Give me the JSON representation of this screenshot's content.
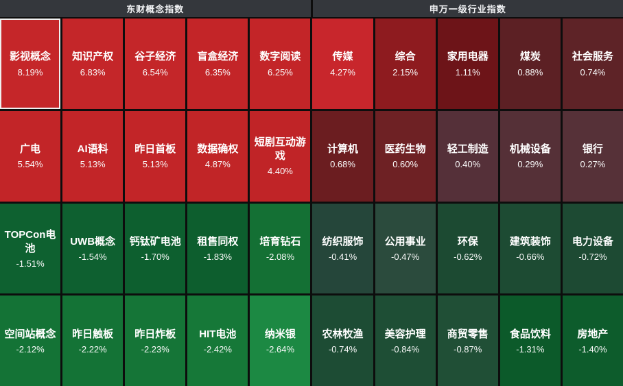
{
  "header": {
    "left_title": "东财概念指数",
    "right_title": "申万一级行业指数"
  },
  "colors": {
    "background": "#0d0d0d",
    "header_bar": "#34373c",
    "header_text": "#f2f3f5",
    "cell_text": "#ffffff",
    "selected_border": "#f0f0f0"
  },
  "chart_data": {
    "type": "heatmap",
    "title": "东财概念指数 / 申万一级行业指数 涨跌幅热力图",
    "value_unit": "%",
    "layout": {
      "rows": 4,
      "columns_per_group": 5,
      "groups_side_by_side": true,
      "order": "row-major"
    },
    "color_scale": {
      "strong_gain": "#c5262a",
      "weak_gain": "#5e2327",
      "weak_loss": "#25463a",
      "strong_loss": "#1c8943"
    },
    "groups": [
      {
        "title": "东财概念指数",
        "cells": [
          {
            "name": "影视概念",
            "value": 8.19,
            "change": "8.19%",
            "color": "#c52629",
            "selected": true
          },
          {
            "name": "知识产权",
            "value": 6.83,
            "change": "6.83%",
            "color": "#c42629",
            "selected": false
          },
          {
            "name": "谷子经济",
            "value": 6.54,
            "change": "6.54%",
            "color": "#c42629",
            "selected": false
          },
          {
            "name": "盲盒经济",
            "value": 6.35,
            "change": "6.35%",
            "color": "#c32528",
            "selected": false
          },
          {
            "name": "数字阅读",
            "value": 6.25,
            "change": "6.25%",
            "color": "#c32528",
            "selected": false
          },
          {
            "name": "广电",
            "value": 5.54,
            "change": "5.54%",
            "color": "#c22528",
            "selected": false
          },
          {
            "name": "AI语料",
            "value": 5.13,
            "change": "5.13%",
            "color": "#c22528",
            "selected": false
          },
          {
            "name": "昨日首板",
            "value": 5.13,
            "change": "5.13%",
            "color": "#c22528",
            "selected": false
          },
          {
            "name": "数据确权",
            "value": 4.87,
            "change": "4.87%",
            "color": "#c12527",
            "selected": false
          },
          {
            "name": "短剧互动游戏",
            "value": 4.4,
            "change": "4.40%",
            "color": "#c02427",
            "selected": false
          },
          {
            "name": "TOPCon电池",
            "value": -1.51,
            "change": "-1.51%",
            "color": "#0e6130",
            "selected": false
          },
          {
            "name": "UWB概念",
            "value": -1.54,
            "change": "-1.54%",
            "color": "#0e6030",
            "selected": false
          },
          {
            "name": "钙钛矿电池",
            "value": -1.7,
            "change": "-1.70%",
            "color": "#0d5f2f",
            "selected": false
          },
          {
            "name": "租售同权",
            "value": -1.83,
            "change": "-1.83%",
            "color": "#0d5e2e",
            "selected": false
          },
          {
            "name": "培育钻石",
            "value": -2.08,
            "change": "-2.08%",
            "color": "#147034",
            "selected": false
          },
          {
            "name": "空间站概念",
            "value": -2.12,
            "change": "-2.12%",
            "color": "#147336",
            "selected": false
          },
          {
            "name": "昨日触板",
            "value": -2.22,
            "change": "-2.22%",
            "color": "#147336",
            "selected": false
          },
          {
            "name": "昨日炸板",
            "value": -2.23,
            "change": "-2.23%",
            "color": "#157537",
            "selected": false
          },
          {
            "name": "HIT电池",
            "value": -2.42,
            "change": "-2.42%",
            "color": "#167838",
            "selected": false
          },
          {
            "name": "纳米银",
            "value": -2.64,
            "change": "-2.64%",
            "color": "#1c8943",
            "selected": false
          }
        ]
      },
      {
        "title": "申万一级行业指数",
        "cells": [
          {
            "name": "传媒",
            "value": 4.27,
            "change": "4.27%",
            "color": "#c8262c",
            "selected": false
          },
          {
            "name": "综合",
            "value": 2.15,
            "change": "2.15%",
            "color": "#8e1b1f",
            "selected": false
          },
          {
            "name": "家用电器",
            "value": 1.11,
            "change": "1.11%",
            "color": "#6d1418",
            "selected": false
          },
          {
            "name": "煤炭",
            "value": 0.88,
            "change": "0.88%",
            "color": "#5c2024",
            "selected": false
          },
          {
            "name": "社会服务",
            "value": 0.74,
            "change": "0.74%",
            "color": "#5e2327",
            "selected": false
          },
          {
            "name": "计算机",
            "value": 0.68,
            "change": "0.68%",
            "color": "#6b1d20",
            "selected": false
          },
          {
            "name": "医药生物",
            "value": 0.6,
            "change": "0.60%",
            "color": "#6e2124",
            "selected": false
          },
          {
            "name": "轻工制造",
            "value": 0.4,
            "change": "0.40%",
            "color": "#553039",
            "selected": false
          },
          {
            "name": "机械设备",
            "value": 0.29,
            "change": "0.29%",
            "color": "#553037",
            "selected": false
          },
          {
            "name": "银行",
            "value": 0.27,
            "change": "0.27%",
            "color": "#563138",
            "selected": false
          },
          {
            "name": "纺织服饰",
            "value": -0.41,
            "change": "-0.41%",
            "color": "#25463a",
            "selected": false
          },
          {
            "name": "公用事业",
            "value": -0.47,
            "change": "-0.47%",
            "color": "#2b4b3d",
            "selected": false
          },
          {
            "name": "环保",
            "value": -0.62,
            "change": "-0.62%",
            "color": "#1c4a32",
            "selected": false
          },
          {
            "name": "建筑装饰",
            "value": -0.66,
            "change": "-0.66%",
            "color": "#1d4b33",
            "selected": false
          },
          {
            "name": "电力设备",
            "value": -0.72,
            "change": "-0.72%",
            "color": "#1d4a33",
            "selected": false
          },
          {
            "name": "农林牧渔",
            "value": -0.74,
            "change": "-0.74%",
            "color": "#1d4c34",
            "selected": false
          },
          {
            "name": "美容护理",
            "value": -0.84,
            "change": "-0.84%",
            "color": "#1e4e35",
            "selected": false
          },
          {
            "name": "商贸零售",
            "value": -0.87,
            "change": "-0.87%",
            "color": "#204f36",
            "selected": false
          },
          {
            "name": "食品饮料",
            "value": -1.31,
            "change": "-1.31%",
            "color": "#0c5a2a",
            "selected": false
          },
          {
            "name": "房地产",
            "value": -1.4,
            "change": "-1.40%",
            "color": "#0d5c2c",
            "selected": false
          }
        ]
      }
    ]
  }
}
